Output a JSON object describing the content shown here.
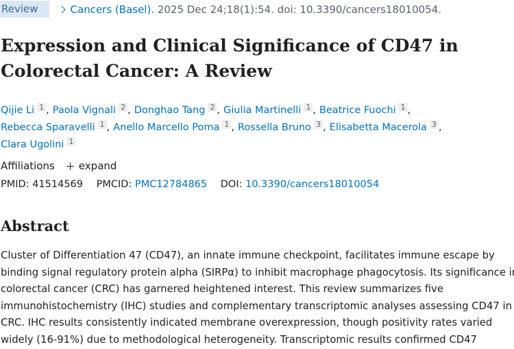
{
  "header": {
    "badge": "Review",
    "journal": "Cancers (Basel)",
    "citation": ". 2025 Dec 24;18(1):54. doi: 10.3390/cancers18010054."
  },
  "title": "Expression and Clinical Significance of CD47 in Colorectal Cancer: A Review",
  "author_separator": ",",
  "authors": [
    [
      {
        "name": "Qijie Li",
        "aff": "1"
      },
      {
        "name": "Paola Vignali",
        "aff": "2"
      },
      {
        "name": "Donghao Tang",
        "aff": "2"
      },
      {
        "name": "Giulia Martinelli",
        "aff": "1"
      },
      {
        "name": "Beatrice Fuochi",
        "aff": "1"
      }
    ],
    [
      {
        "name": "Rebecca Sparavelli",
        "aff": "1"
      },
      {
        "name": "Anello Marcello Poma",
        "aff": "1"
      },
      {
        "name": "Rossella Bruno",
        "aff": "3"
      },
      {
        "name": "Elisabetta Macerola",
        "aff": "3"
      }
    ],
    [
      {
        "name": "Clara Ugolini",
        "aff": "1"
      }
    ]
  ],
  "affiliations": {
    "label": "Affiliations",
    "toggle": "expand"
  },
  "identifiers": {
    "pmid_label": "PMID:",
    "pmid": "41514569",
    "pmcid_label": "PMCID:",
    "pmcid": "PMC12784865",
    "doi_label": "DOI:",
    "doi": "10.3390/cancers18010054"
  },
  "abstract": {
    "heading": "Abstract",
    "lines": [
      "Cluster of Differentiation 47 (CD47), an innate immune checkpoint, facilitates immune escape by",
      "binding signal regulatory protein alpha (SIRPα) to inhibit macrophage phagocytosis. Its significance in",
      "colorectal cancer (CRC) has garnered heightened interest. This review summarizes five",
      "immunohistochemistry (IHC) studies and complementary transcriptomic analyses assessing CD47 in",
      "CRC. IHC results consistently indicated membrane overexpression, though positivity rates varied",
      "widely (16-91%) due to methodological heterogeneity. Transcriptomic results confirmed CD47"
    ]
  }
}
